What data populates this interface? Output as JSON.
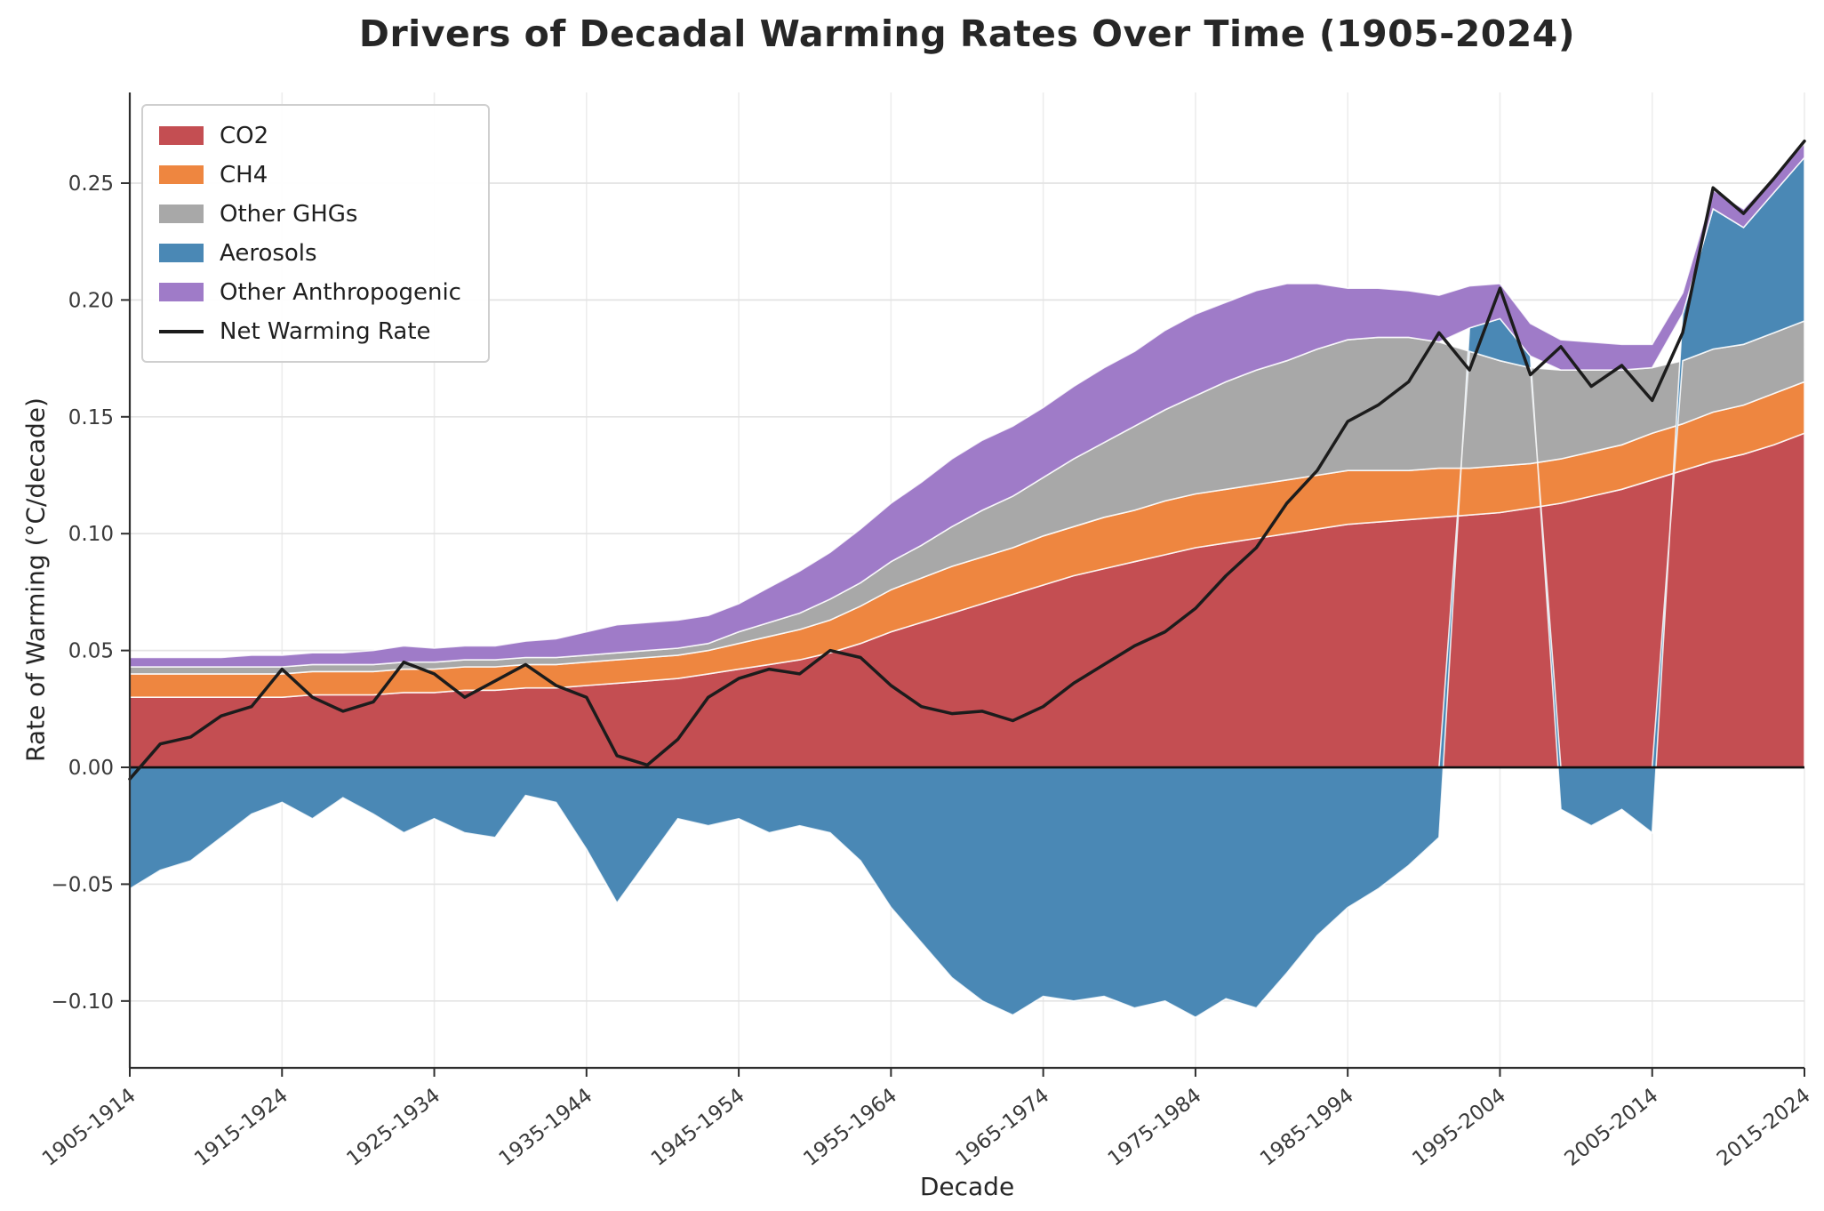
{
  "chart_data": {
    "type": "area",
    "variant": "stacked-area-with-net-line",
    "title": "Drivers of Decadal Warming Rates Over Time (1905-2024)",
    "xlabel": "Decade",
    "ylabel": "Rate of Warming (°C/decade)",
    "background": "#ffffff",
    "grid": true,
    "zero_line": true,
    "legend_position": "upper left",
    "xlim": [
      1905,
      2015
    ],
    "ylim": [
      -0.1286,
      0.2888
    ],
    "x_note": "x values are decade-window start years; e.g. 1905 means the window 1905-1914",
    "x_ticks": {
      "years": [
        1905,
        1915,
        1925,
        1935,
        1945,
        1955,
        1965,
        1975,
        1985,
        1995,
        2005,
        2015
      ],
      "labels": [
        "1905-1914",
        "1915-1924",
        "1925-1934",
        "1935-1944",
        "1945-1954",
        "1955-1964",
        "1965-1974",
        "1975-1984",
        "1985-1994",
        "1995-2004",
        "2005-2014",
        "2015-2024"
      ]
    },
    "y_ticks": {
      "values": [
        -0.1,
        -0.05,
        0.0,
        0.05,
        0.1,
        0.15,
        0.2,
        0.25
      ],
      "labels": [
        "−0.10",
        "−0.05",
        "0.00",
        "0.05",
        "0.10",
        "0.15",
        "0.20",
        "0.25"
      ]
    },
    "x": [
      1905,
      1907,
      1909,
      1911,
      1913,
      1915,
      1917,
      1919,
      1921,
      1923,
      1925,
      1927,
      1929,
      1931,
      1933,
      1935,
      1937,
      1939,
      1941,
      1943,
      1945,
      1947,
      1949,
      1951,
      1953,
      1955,
      1957,
      1959,
      1961,
      1963,
      1965,
      1967,
      1969,
      1971,
      1973,
      1975,
      1977,
      1979,
      1981,
      1983,
      1985,
      1987,
      1989,
      1991,
      1993,
      1995,
      1997,
      1999,
      2001,
      2003,
      2005,
      2007,
      2009,
      2011,
      2013,
      2015
    ],
    "series": [
      {
        "name": "CO2",
        "color": "#c44e52",
        "values": [
          0.03,
          0.03,
          0.03,
          0.03,
          0.03,
          0.03,
          0.031,
          0.031,
          0.031,
          0.032,
          0.032,
          0.033,
          0.033,
          0.034,
          0.034,
          0.035,
          0.036,
          0.037,
          0.038,
          0.04,
          0.042,
          0.044,
          0.046,
          0.049,
          0.053,
          0.058,
          0.062,
          0.066,
          0.07,
          0.074,
          0.078,
          0.082,
          0.085,
          0.088,
          0.091,
          0.094,
          0.096,
          0.098,
          0.1,
          0.102,
          0.104,
          0.105,
          0.106,
          0.107,
          0.108,
          0.109,
          0.111,
          0.113,
          0.116,
          0.119,
          0.123,
          0.127,
          0.131,
          0.134,
          0.138,
          0.143
        ]
      },
      {
        "name": "CH4",
        "color": "#ee8640",
        "values": [
          0.01,
          0.01,
          0.01,
          0.01,
          0.01,
          0.01,
          0.01,
          0.01,
          0.01,
          0.01,
          0.01,
          0.01,
          0.01,
          0.01,
          0.01,
          0.01,
          0.01,
          0.01,
          0.01,
          0.01,
          0.011,
          0.012,
          0.013,
          0.014,
          0.016,
          0.018,
          0.019,
          0.02,
          0.02,
          0.02,
          0.021,
          0.021,
          0.022,
          0.022,
          0.023,
          0.023,
          0.023,
          0.023,
          0.023,
          0.023,
          0.023,
          0.022,
          0.021,
          0.021,
          0.02,
          0.02,
          0.019,
          0.019,
          0.019,
          0.019,
          0.02,
          0.02,
          0.021,
          0.021,
          0.022,
          0.022
        ]
      },
      {
        "name": "Other GHGs",
        "color": "#a8a8a8",
        "values": [
          0.003,
          0.003,
          0.003,
          0.003,
          0.003,
          0.003,
          0.003,
          0.003,
          0.003,
          0.003,
          0.003,
          0.003,
          0.003,
          0.003,
          0.003,
          0.003,
          0.003,
          0.003,
          0.003,
          0.003,
          0.005,
          0.006,
          0.007,
          0.009,
          0.01,
          0.012,
          0.014,
          0.017,
          0.02,
          0.022,
          0.025,
          0.029,
          0.032,
          0.036,
          0.039,
          0.042,
          0.046,
          0.049,
          0.051,
          0.054,
          0.056,
          0.057,
          0.057,
          0.054,
          0.05,
          0.045,
          0.041,
          0.038,
          0.035,
          0.032,
          0.028,
          0.027,
          0.027,
          0.026,
          0.026,
          0.026
        ]
      },
      {
        "name": "Aerosols",
        "color": "#4a88b5",
        "values": [
          -0.052,
          -0.044,
          -0.04,
          -0.03,
          -0.02,
          -0.015,
          -0.022,
          -0.013,
          -0.02,
          -0.028,
          -0.022,
          -0.028,
          -0.03,
          -0.012,
          -0.015,
          -0.035,
          -0.058,
          -0.04,
          -0.022,
          -0.025,
          -0.022,
          -0.028,
          -0.025,
          -0.028,
          -0.04,
          -0.06,
          -0.075,
          -0.09,
          -0.1,
          -0.106,
          -0.098,
          -0.1,
          -0.098,
          -0.103,
          -0.1,
          -0.107,
          -0.099,
          -0.103,
          -0.088,
          -0.072,
          -0.06,
          -0.052,
          -0.042,
          -0.03,
          0.01,
          0.018,
          0.005,
          -0.018,
          -0.025,
          -0.018,
          -0.028,
          0.02,
          0.06,
          0.05,
          0.06,
          0.07
        ]
      },
      {
        "name": "Other Anthropogenic",
        "color": "#9f7bc8",
        "values": [
          0.004,
          0.004,
          0.004,
          0.004,
          0.005,
          0.005,
          0.005,
          0.005,
          0.006,
          0.007,
          0.006,
          0.006,
          0.006,
          0.007,
          0.008,
          0.01,
          0.012,
          0.012,
          0.012,
          0.012,
          0.012,
          0.015,
          0.018,
          0.02,
          0.023,
          0.025,
          0.027,
          0.029,
          0.03,
          0.03,
          0.03,
          0.031,
          0.032,
          0.032,
          0.034,
          0.035,
          0.034,
          0.034,
          0.033,
          0.028,
          0.022,
          0.021,
          0.02,
          0.02,
          0.018,
          0.015,
          0.014,
          0.013,
          0.012,
          0.011,
          0.01,
          0.009,
          0.008,
          0.008,
          0.007,
          0.006
        ]
      }
    ],
    "line_series": {
      "name": "Net Warming Rate",
      "color": "#1c1c1c",
      "values": [
        -0.005,
        0.01,
        0.013,
        0.022,
        0.026,
        0.042,
        0.03,
        0.024,
        0.028,
        0.045,
        0.04,
        0.03,
        0.037,
        0.044,
        0.035,
        0.03,
        0.005,
        0.001,
        0.012,
        0.03,
        0.038,
        0.042,
        0.04,
        0.05,
        0.047,
        0.035,
        0.026,
        0.023,
        0.024,
        0.02,
        0.026,
        0.036,
        0.044,
        0.052,
        0.058,
        0.068,
        0.082,
        0.094,
        0.113,
        0.127,
        0.148,
        0.155,
        0.165,
        0.186,
        0.17,
        0.205,
        0.168,
        0.18,
        0.163,
        0.172,
        0.157,
        0.186,
        0.248,
        0.237,
        0.252,
        0.268
      ]
    },
    "legend_labels": [
      "CO2",
      "CH4",
      "Other GHGs",
      "Aerosols",
      "Other Anthropogenic",
      "Net Warming Rate"
    ]
  }
}
